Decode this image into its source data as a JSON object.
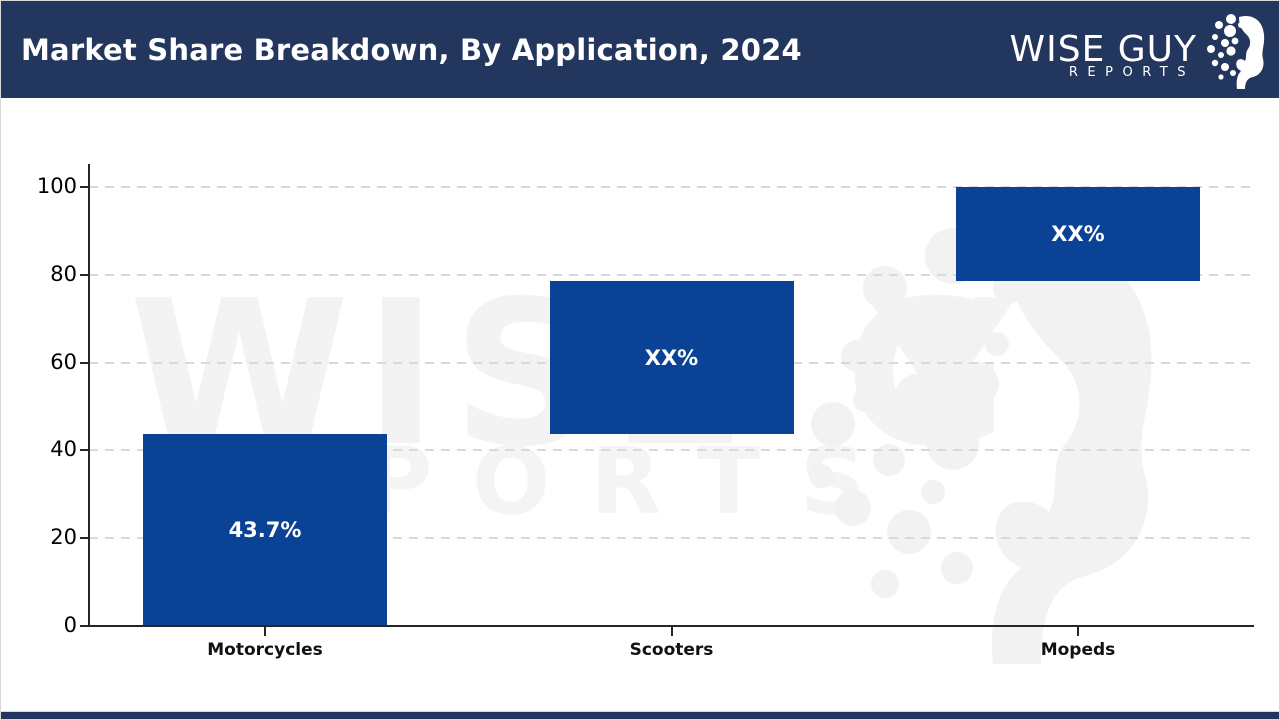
{
  "header": {
    "title": "Market Share Breakdown, By Application, 2024",
    "bg_color": "#23365e",
    "logo": {
      "line1": "WISE GUY",
      "line2": "REPORTS"
    }
  },
  "watermark": {
    "text_top": "WISE G",
    "text_top_tail": "Y",
    "text_bottom": "REPORTS"
  },
  "chart_data": {
    "type": "bar",
    "variant": "waterfall",
    "title": "Market Share Breakdown, By Application, 2024",
    "categories": [
      "Motorcycles",
      "Scooters",
      "Mopeds"
    ],
    "series": [
      {
        "name": "Market Share",
        "segments": [
          {
            "category": "Motorcycles",
            "start": 0,
            "end": 43.7,
            "value": 43.7,
            "label": "43.7%"
          },
          {
            "category": "Scooters",
            "start": 43.7,
            "end": 78.5,
            "value": 34.8,
            "label": "XX%"
          },
          {
            "category": "Mopeds",
            "start": 78.5,
            "end": 100,
            "value": 21.5,
            "label": "XX%"
          }
        ]
      }
    ],
    "xlabel": "",
    "ylabel": "",
    "yticks": [
      0,
      20,
      40,
      60,
      80,
      100
    ],
    "ylim": [
      0,
      105
    ],
    "grid": "horizontal-dashed",
    "legend": "none",
    "bar_color": "#0a4396",
    "bar_label_color": "#ffffff",
    "axis_color": "#262626",
    "gridline_color": "#d9d9d9"
  },
  "footer": {
    "bar_color": "#23365e"
  }
}
